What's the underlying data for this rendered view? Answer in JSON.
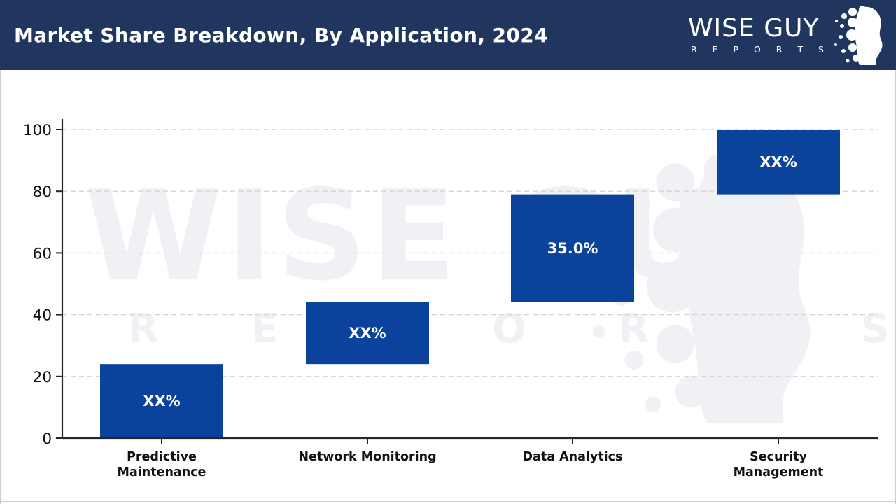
{
  "header": {
    "title": "Market Share Breakdown, By Application, 2024",
    "logo": {
      "name": "WISE GUY",
      "sub": "R E P O R T S"
    },
    "bg_color": "#21365f",
    "text_color": "#ffffff"
  },
  "watermark": {
    "text": "WISE GU",
    "sub": "R E P O R T S"
  },
  "chart_data": {
    "type": "bar",
    "subtype": "waterfall",
    "title": "Market Share Breakdown, By Application, 2024",
    "categories": [
      "Predictive Maintenance",
      "Network Monitoring",
      "Data Analytics",
      "Security Management"
    ],
    "category_lines": [
      [
        "Predictive",
        "Maintenance"
      ],
      [
        "Network Monitoring"
      ],
      [
        "Data Analytics"
      ],
      [
        "Security",
        "Management"
      ]
    ],
    "segments": [
      {
        "category": "Predictive Maintenance",
        "start": 0,
        "end": 24,
        "label": "XX%"
      },
      {
        "category": "Network Monitoring",
        "start": 24,
        "end": 44,
        "label": "XX%"
      },
      {
        "category": "Data Analytics",
        "start": 44,
        "end": 79,
        "label": "35.0%"
      },
      {
        "category": "Security Management",
        "start": 79,
        "end": 100,
        "label": "XX%"
      }
    ],
    "yticks": [
      0,
      20,
      40,
      60,
      80,
      100
    ],
    "ylim": [
      0,
      100
    ],
    "xlabel": "",
    "ylabel": "",
    "legend": null,
    "grid": "horizontal-dashed",
    "colors": {
      "bar": "#0b439c",
      "bar_label": "#ffffff",
      "axis": "#262626",
      "grid": "#d4d4d4",
      "tick_label": "#111111",
      "category_label": "#111111"
    }
  }
}
